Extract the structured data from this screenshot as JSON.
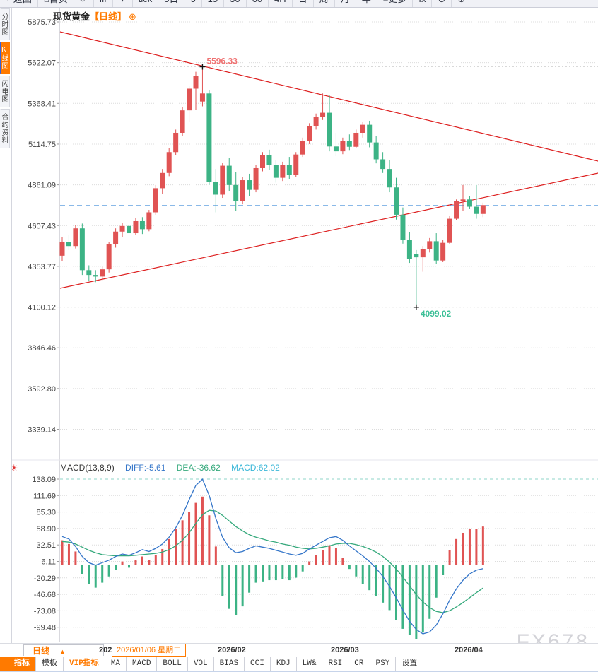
{
  "toolbar": {
    "items": [
      {
        "name": "back-button",
        "text": "↶返回"
      },
      {
        "name": "home-button",
        "text": "⌂首页"
      },
      {
        "name": "refresh-icon",
        "text": "⟳"
      },
      {
        "name": "volume-chart-icon",
        "text": "ılı"
      },
      {
        "name": "kline-style-icon",
        "text": "✦"
      },
      {
        "name": "period-tick",
        "text": "tick"
      },
      {
        "name": "period-5day",
        "text": "5日"
      },
      {
        "name": "period-5min",
        "text": "5"
      },
      {
        "name": "period-15min",
        "text": "15"
      },
      {
        "name": "period-30min",
        "text": "30"
      },
      {
        "name": "period-60min",
        "text": "60"
      },
      {
        "name": "period-4h",
        "text": "4H"
      },
      {
        "name": "period-day",
        "text": "日"
      },
      {
        "name": "period-week",
        "text": "周"
      },
      {
        "name": "period-month",
        "text": "月"
      },
      {
        "name": "period-year",
        "text": "年"
      },
      {
        "name": "more-button",
        "text": "≡更多"
      },
      {
        "name": "fx-indicator-button",
        "text": "fx"
      },
      {
        "name": "zoom-out-icon",
        "text": "⊙"
      },
      {
        "name": "zoom-in-icon",
        "text": "⊕"
      }
    ]
  },
  "sidebar": {
    "tabs": [
      {
        "name": "sidebar-tab-timeshare",
        "label": "分时图",
        "active": false
      },
      {
        "name": "sidebar-tab-kline",
        "label": "K线图",
        "active": true
      },
      {
        "name": "sidebar-tab-lightning",
        "label": "闪电图",
        "active": false
      },
      {
        "name": "sidebar-tab-contract-info",
        "label": "合约资料",
        "active": false
      }
    ]
  },
  "header": {
    "symbol": "现货黄金",
    "period_tag": "【日线】",
    "add_icon": "⊕"
  },
  "macd_header": {
    "title": "MACD(13,8,9)",
    "diff": "DIFF:-5.61",
    "dea": "DEA:-36.62",
    "macd": "MACD:62.02",
    "settings_icon": "☀"
  },
  "bottom": {
    "period_selector": "日线",
    "period_arrow": "▲",
    "date_tooltip": "2026/01/06 星期二",
    "x_labels": [
      "2026/01",
      "2026/02",
      "2026/03",
      "2026/04"
    ],
    "watermark": "FX678",
    "indicators": [
      {
        "label": "指标",
        "style": "active"
      },
      {
        "label": "模板",
        "style": ""
      },
      {
        "label": "VIP指标",
        "style": "vip"
      },
      {
        "label": "MA",
        "style": ""
      },
      {
        "label": "MACD",
        "style": ""
      },
      {
        "label": "BOLL",
        "style": ""
      },
      {
        "label": "VOL",
        "style": ""
      },
      {
        "label": "BIAS",
        "style": ""
      },
      {
        "label": "CCI",
        "style": ""
      },
      {
        "label": "KDJ",
        "style": ""
      },
      {
        "label": "LW&",
        "style": ""
      },
      {
        "label": "RSI",
        "style": ""
      },
      {
        "label": "CR",
        "style": ""
      },
      {
        "label": "PSY",
        "style": ""
      },
      {
        "label": "设置",
        "style": ""
      }
    ]
  },
  "colors": {
    "up": "#e05353",
    "down": "#3cb385",
    "diff_line": "#3576c9",
    "dea_line": "#35a97c",
    "accent_orange": "#ff7a00",
    "trendline": "#dd1f1f",
    "price_line": "#1673d2",
    "annotation_high": "#ef7272",
    "annotation_low": "#3bbf96",
    "grid": "#dcdcdc",
    "axis_text": "#444",
    "macd_top_grid": "#8fd4c8"
  },
  "chart_data": {
    "type": "candlestick",
    "title": "现货黄金 日线 (spot gold daily)",
    "price_axis_labels": [
      "5875.73",
      "5622.07",
      "5368.41",
      "5114.75",
      "4861.09",
      "4607.43",
      "4353.77",
      "4100.12",
      "3846.46",
      "3592.80",
      "3339.14"
    ],
    "macd_axis_labels": [
      "138.09",
      "111.69",
      "85.30",
      "58.90",
      "32.51",
      "6.11",
      "-20.29",
      "-46.68",
      "-73.08",
      "-99.48"
    ],
    "annotations": {
      "high": {
        "text": "5596.33",
        "value": 5596.33,
        "bar": 21
      },
      "low": {
        "text": "4099.02",
        "value": 4099.02,
        "bar": 53
      }
    },
    "current_price": 4731,
    "candles_ohlc": [
      [
        4420,
        4535,
        4385,
        4505
      ],
      [
        4505,
        4550,
        4455,
        4480
      ],
      [
        4480,
        4610,
        4465,
        4590
      ],
      [
        4590,
        4620,
        4300,
        4330
      ],
      [
        4330,
        4360,
        4265,
        4300
      ],
      [
        4300,
        4330,
        4255,
        4290
      ],
      [
        4290,
        4350,
        4268,
        4335
      ],
      [
        4335,
        4505,
        4315,
        4490
      ],
      [
        4490,
        4590,
        4470,
        4570
      ],
      [
        4570,
        4625,
        4535,
        4605
      ],
      [
        4605,
        4650,
        4540,
        4560
      ],
      [
        4560,
        4655,
        4548,
        4635
      ],
      [
        4635,
        4660,
        4555,
        4585
      ],
      [
        4585,
        4705,
        4572,
        4690
      ],
      [
        4690,
        4860,
        4675,
        4840
      ],
      [
        4840,
        4960,
        4805,
        4935
      ],
      [
        4935,
        5090,
        4915,
        5065
      ],
      [
        5065,
        5205,
        5045,
        5185
      ],
      [
        5185,
        5345,
        5165,
        5325
      ],
      [
        5325,
        5480,
        5255,
        5460
      ],
      [
        5460,
        5565,
        5330,
        5540
      ],
      [
        5380,
        5596.33,
        5350,
        5430
      ],
      [
        5430,
        5450,
        4860,
        4880
      ],
      [
        4880,
        4960,
        4690,
        4800
      ],
      [
        4800,
        5000,
        4780,
        4980
      ],
      [
        4980,
        5030,
        4820,
        4860
      ],
      [
        4860,
        4940,
        4700,
        4760
      ],
      [
        4760,
        4910,
        4740,
        4890
      ],
      [
        4890,
        4930,
        4790,
        4830
      ],
      [
        4830,
        4985,
        4815,
        4965
      ],
      [
        4965,
        5065,
        4945,
        5045
      ],
      [
        5045,
        5080,
        4955,
        4985
      ],
      [
        4985,
        5015,
        4875,
        4905
      ],
      [
        4905,
        5005,
        4885,
        4985
      ],
      [
        4985,
        5035,
        4895,
        4925
      ],
      [
        4925,
        5065,
        4912,
        5050
      ],
      [
        5050,
        5155,
        5035,
        5135
      ],
      [
        5135,
        5245,
        5115,
        5225
      ],
      [
        5225,
        5305,
        5205,
        5285
      ],
      [
        5285,
        5430,
        5265,
        5310
      ],
      [
        5310,
        5420,
        5070,
        5100
      ],
      [
        5100,
        5185,
        5040,
        5070
      ],
      [
        5070,
        5155,
        5052,
        5135
      ],
      [
        5135,
        5175,
        5078,
        5098
      ],
      [
        5098,
        5205,
        5088,
        5185
      ],
      [
        5185,
        5255,
        5155,
        5235
      ],
      [
        5235,
        5260,
        5095,
        5125
      ],
      [
        5125,
        5165,
        4995,
        5020
      ],
      [
        5020,
        5065,
        4935,
        4960
      ],
      [
        4960,
        5015,
        4815,
        4845
      ],
      [
        4845,
        4905,
        4645,
        4675
      ],
      [
        4675,
        4720,
        4495,
        4520
      ],
      [
        4520,
        4565,
        4375,
        4400
      ],
      [
        4430,
        4455,
        4099.02,
        4410
      ],
      [
        4410,
        4480,
        4320,
        4460
      ],
      [
        4460,
        4530,
        4440,
        4510
      ],
      [
        4510,
        4560,
        4370,
        4390
      ],
      [
        4390,
        4520,
        4380,
        4500
      ],
      [
        4500,
        4670,
        4490,
        4650
      ],
      [
        4650,
        4770,
        4640,
        4760
      ],
      [
        4760,
        4860,
        4700,
        4770
      ],
      [
        4770,
        4790,
        4710,
        4725
      ],
      [
        4725,
        4860,
        4650,
        4680
      ],
      [
        4680,
        4750,
        4660,
        4735
      ]
    ],
    "macd": {
      "hist": [
        40,
        34,
        22,
        -14,
        -30,
        -36,
        -28,
        -18,
        -8,
        6,
        -4,
        8,
        14,
        8,
        16,
        26,
        42,
        58,
        72,
        85,
        100,
        110,
        80,
        30,
        -50,
        -70,
        -80,
        -66,
        -44,
        -28,
        -26,
        -24,
        -24,
        -22,
        -24,
        -20,
        -10,
        6,
        16,
        24,
        32,
        28,
        12,
        -6,
        -18,
        -30,
        -40,
        -50,
        -60,
        -72,
        -88,
        -102,
        -112,
        -118,
        -108,
        -86,
        -52,
        -16,
        24,
        42,
        52,
        58,
        58,
        62
      ],
      "diff": [
        46,
        42,
        30,
        14,
        4,
        0,
        4,
        8,
        14,
        18,
        16,
        20,
        25,
        22,
        27,
        34,
        45,
        60,
        80,
        105,
        128,
        138,
        112,
        75,
        45,
        28,
        20,
        22,
        27,
        31,
        29,
        27,
        24,
        21,
        18,
        16,
        19,
        26,
        32,
        38,
        44,
        46,
        40,
        31,
        23,
        15,
        6,
        -5,
        -18,
        -34,
        -52,
        -72,
        -90,
        -103,
        -110,
        -107,
        -96,
        -78,
        -56,
        -38,
        -24,
        -14,
        -8,
        -5.61
      ],
      "dea": [
        38,
        37,
        34,
        29,
        24,
        20,
        17,
        16,
        15,
        15,
        15,
        16,
        17,
        18,
        19,
        21,
        25,
        31,
        40,
        52,
        67,
        81,
        88,
        87,
        80,
        71,
        62,
        55,
        49,
        45,
        42,
        39,
        37,
        34,
        32,
        29,
        27,
        26,
        27,
        29,
        31,
        34,
        35,
        35,
        33,
        30,
        26,
        21,
        14,
        5,
        -6,
        -19,
        -33,
        -47,
        -59,
        -68,
        -74,
        -76,
        -73,
        -67,
        -60,
        -52,
        -44,
        -36.62
      ]
    }
  }
}
